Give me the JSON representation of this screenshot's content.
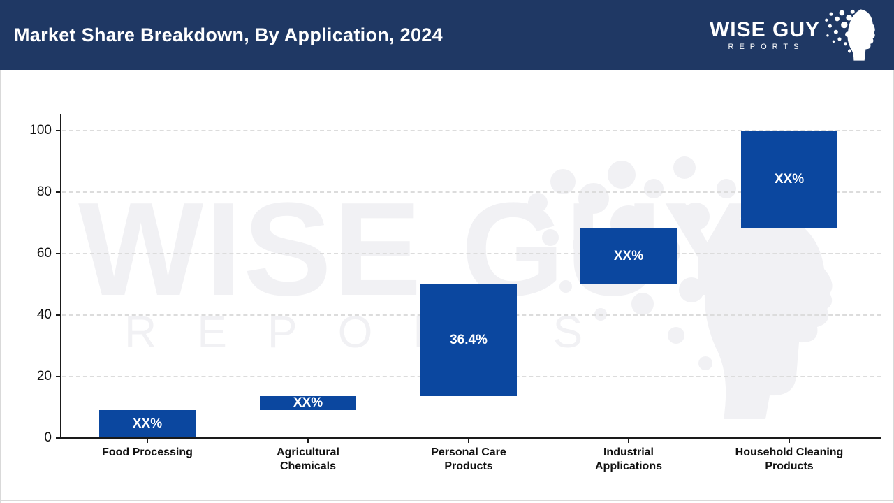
{
  "header": {
    "title": "Market Share Breakdown, By Application, 2024",
    "logo": {
      "line1": "WISE GUY",
      "line2": "REPORTS"
    }
  },
  "watermark": {
    "line1": "WISE GUY",
    "line2": "REPORTS"
  },
  "colors": {
    "header_bg": "#1f3864",
    "bar": "#0b479f",
    "value_label": "#ffffff",
    "axis": "#1a1a1a",
    "grid": "#dcdcdc",
    "tick_label": "#111111",
    "watermark": "#f1f1f4",
    "frame": "#d9d9d9",
    "title": "#ffffff"
  },
  "chart_data": {
    "type": "bar",
    "subtype": "waterfall",
    "title": "Market Share Breakdown, By Application, 2024",
    "unit": "%",
    "categories": [
      "Food Processing",
      "Agricultural Chemicals",
      "Personal Care Products",
      "Industrial Applications",
      "Household Cleaning Products"
    ],
    "segments": [
      {
        "category": "Food Processing",
        "label_lines": [
          "Food Processing"
        ],
        "start": 0,
        "end": 9,
        "value_label": "XX%"
      },
      {
        "category": "Agricultural Chemicals",
        "label_lines": [
          "Agricultural",
          "Chemicals"
        ],
        "start": 9,
        "end": 13.6,
        "value_label": "XX%"
      },
      {
        "category": "Personal Care Products",
        "label_lines": [
          "Personal Care",
          "Products"
        ],
        "start": 13.6,
        "end": 50,
        "value_label": "36.4%"
      },
      {
        "category": "Industrial Applications",
        "label_lines": [
          "Industrial",
          "Applications"
        ],
        "start": 50,
        "end": 68.2,
        "value_label": "XX%"
      },
      {
        "category": "Household Cleaning Products",
        "label_lines": [
          "Household Cleaning",
          "Products"
        ],
        "start": 68.2,
        "end": 100,
        "value_label": "XX%"
      }
    ],
    "yticks": [
      0,
      20,
      40,
      60,
      80,
      100
    ],
    "ylim": [
      0,
      105
    ],
    "xlabel": "",
    "ylabel": "",
    "grid": "horizontal-dashed",
    "legend": "none"
  }
}
